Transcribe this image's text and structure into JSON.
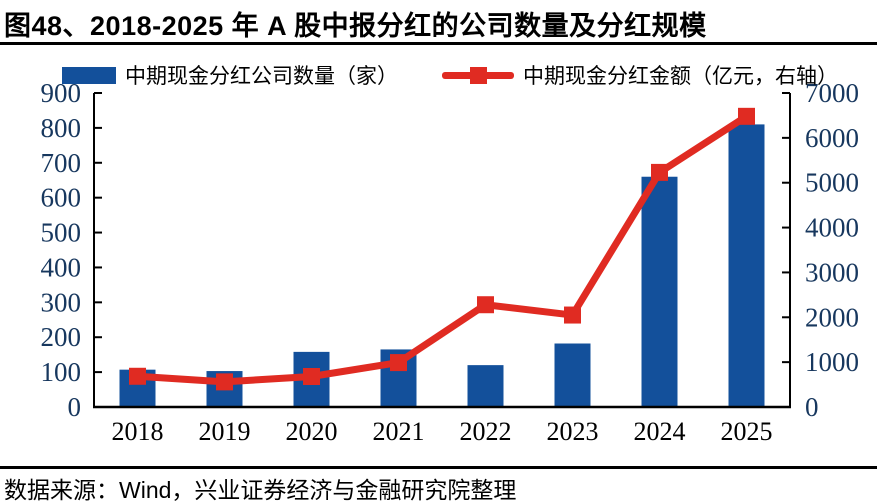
{
  "header": {
    "title": "图48、2018-2025 年 A 股中报分红的公司数量及分红规模"
  },
  "legend": {
    "items": [
      {
        "label": "中期现金分红公司数量（家）"
      },
      {
        "label": "中期现金分红金额（亿元，右轴）"
      }
    ]
  },
  "chart_data": {
    "type": "bar",
    "title": "2018-2025 年 A 股中报分红的公司数量及分红规模",
    "categories": [
      "2018",
      "2019",
      "2020",
      "2021",
      "2022",
      "2023",
      "2024",
      "2025"
    ],
    "series": [
      {
        "name": "中期现金分红公司数量（家）",
        "type": "bar",
        "axis": "left",
        "values": [
          107,
          103,
          158,
          165,
          120,
          182,
          660,
          810
        ]
      },
      {
        "name": "中期现金分红金额（亿元，右轴）",
        "type": "line",
        "axis": "right",
        "values": [
          685,
          560,
          680,
          990,
          2280,
          2050,
          5230,
          6480
        ]
      }
    ],
    "y_left": {
      "min": 0,
      "max": 900,
      "step": 100,
      "ticks": [
        0,
        100,
        200,
        300,
        400,
        500,
        600,
        700,
        800,
        900
      ]
    },
    "y_right": {
      "min": 0,
      "max": 7000,
      "step": 1000,
      "ticks": [
        0,
        1000,
        2000,
        3000,
        4000,
        5000,
        6000,
        7000
      ]
    },
    "legend_position": "top",
    "grid": false,
    "colors": {
      "bar": "#13509B",
      "line": "#E02B22",
      "axis_label_left": "#17375E",
      "axis_label_right": "#17375E",
      "category_label": "#000000",
      "axis_line": "#000000"
    }
  },
  "footer": {
    "source": "数据来源：Wind，兴业证券经济与金融研究院整理"
  }
}
